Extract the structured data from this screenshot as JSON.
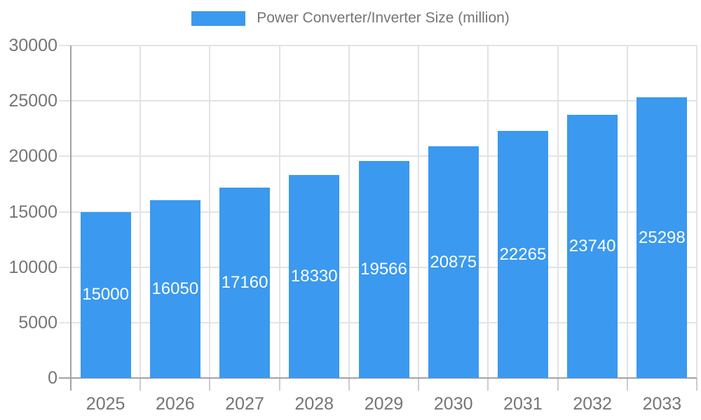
{
  "chart_data": {
    "type": "bar",
    "legend": "Power Converter/Inverter Size (million)",
    "categories": [
      "2025",
      "2026",
      "2027",
      "2028",
      "2029",
      "2030",
      "2031",
      "2032",
      "2033"
    ],
    "values": [
      15000,
      16050,
      17160,
      18330,
      19566,
      20875,
      22265,
      23740,
      25298
    ],
    "ylim": [
      0,
      30000
    ],
    "yticks": [
      0,
      5000,
      10000,
      15000,
      20000,
      25000,
      30000
    ],
    "grid": true,
    "legend_position": "top",
    "colors": {
      "bar": "#3B99EF",
      "bar_label": "#FFFFFF",
      "axis_text": "#757575",
      "grid_line": "#E3E3E3",
      "axis_line": "#A3A3A3",
      "boundary_tick": "#CCCCCC"
    }
  }
}
